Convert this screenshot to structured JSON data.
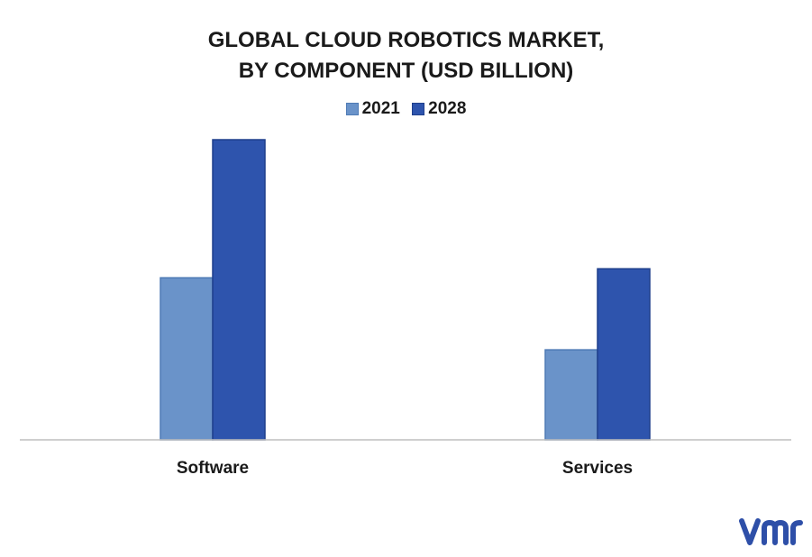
{
  "chart_data": {
    "type": "bar",
    "title_line1": "GLOBAL CLOUD ROBOTICS MARKET,",
    "title_line2": "BY COMPONENT (USD BILLION)",
    "categories": [
      "Software",
      "Services"
    ],
    "series": [
      {
        "name": "2021",
        "values": [
          5.4,
          3.0
        ],
        "color": "#6a93c9",
        "stroke": "#4f7bb5"
      },
      {
        "name": "2028",
        "values": [
          10.0,
          5.7
        ],
        "color": "#2e54ad",
        "stroke": "#1f3f8c"
      }
    ],
    "ylim": [
      0,
      10.5
    ],
    "grid": false,
    "legend_position": "top-center"
  },
  "colors": {
    "axis": "#bfbfbf",
    "text": "#1a1a1a",
    "logo": "#2e4fa8"
  },
  "logo": {
    "icon": "vmr-logo-icon"
  }
}
